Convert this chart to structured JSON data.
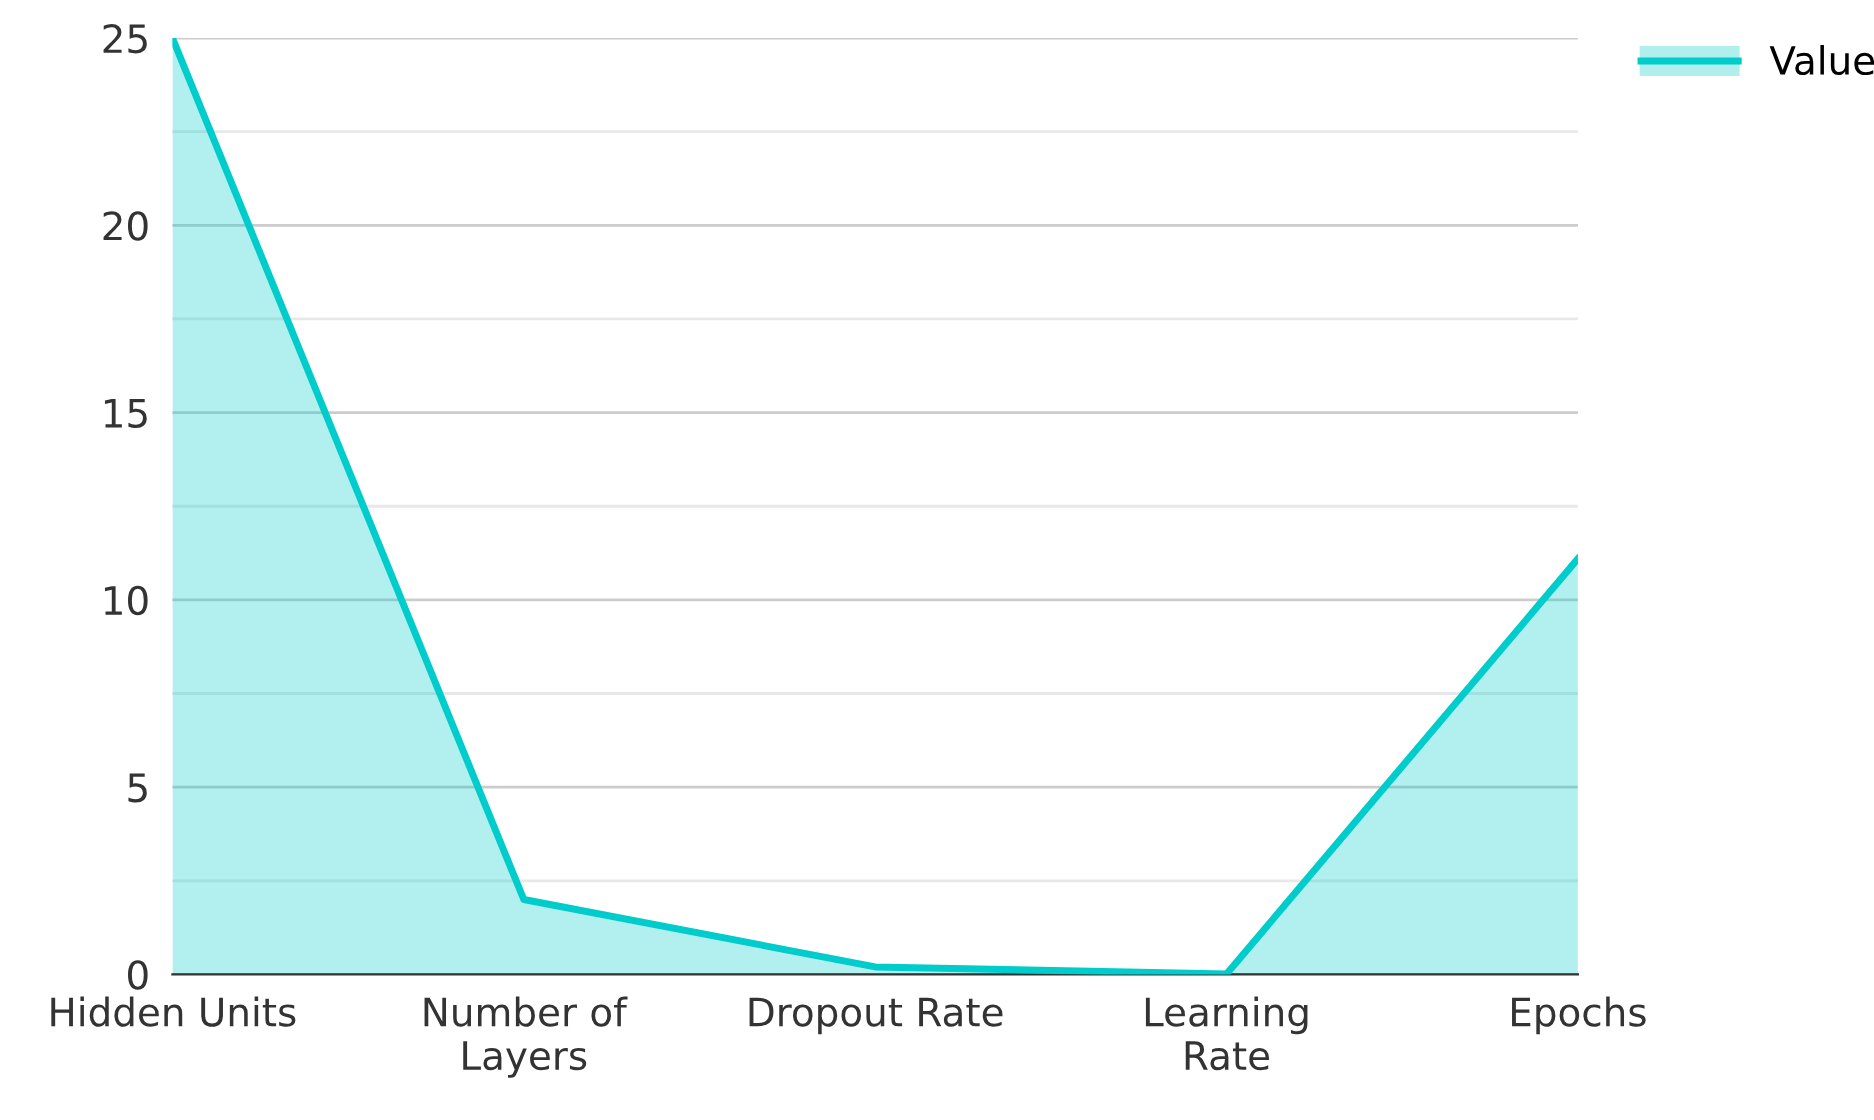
{
  "chart_data": {
    "type": "area",
    "categories": [
      "Hidden Units",
      "Number of Layers",
      "Dropout Rate",
      "Learning Rate",
      "Epochs"
    ],
    "series": [
      {
        "name": "Value",
        "color": "#00cccc",
        "values": [
          25,
          2,
          0.2,
          0.01,
          11.1
        ]
      }
    ],
    "ylim": [
      0,
      25
    ],
    "yticks": [
      0,
      {
        "value": 2.5,
        "label": null
      },
      5,
      {
        "value": 7.5,
        "label": null
      },
      10,
      {
        "value": 12.5,
        "label": null
      },
      15,
      {
        "value": 17.5,
        "label": null
      },
      20,
      {
        "value": 22.5,
        "label": null
      },
      25
    ],
    "grid": "y",
    "legend": "top right"
  }
}
